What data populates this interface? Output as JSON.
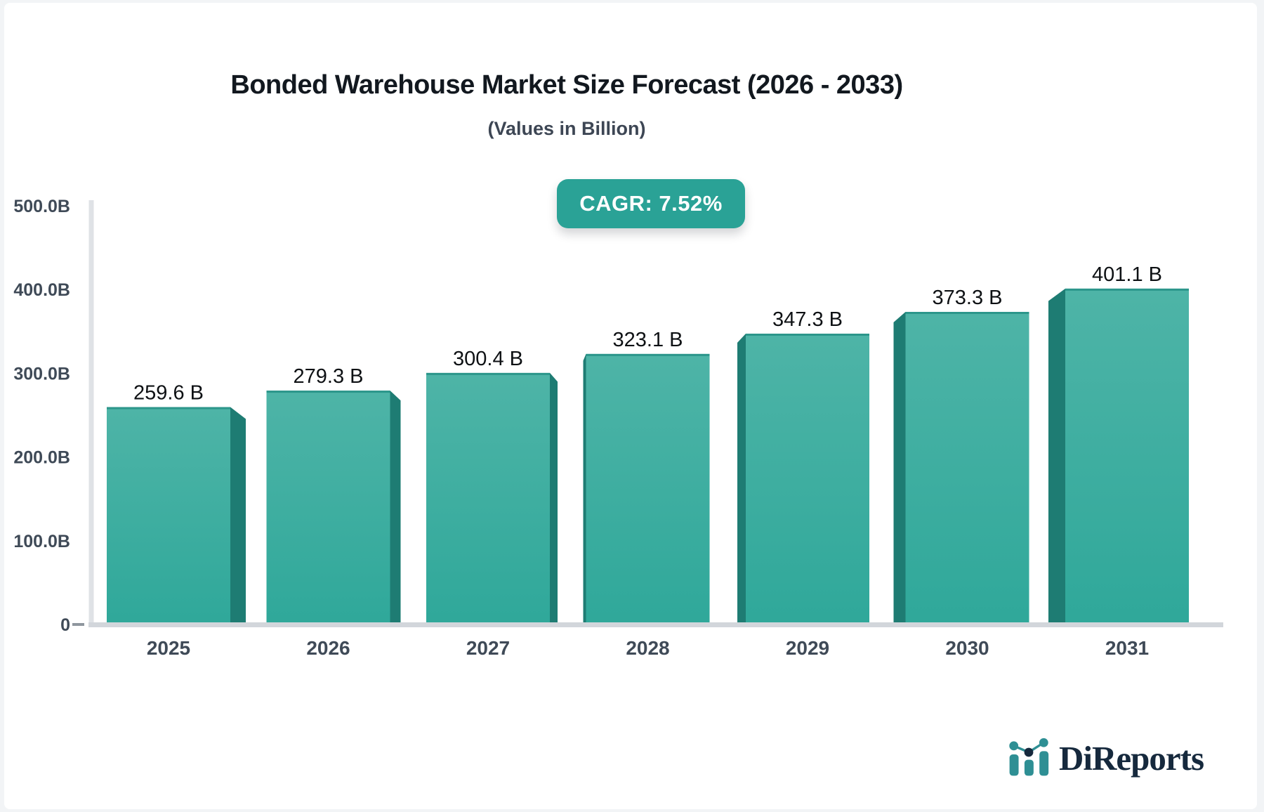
{
  "header": {
    "title": "Bonded Warehouse Market Size Forecast (2026 - 2033)",
    "subtitle": "(Values in Billion)"
  },
  "badge": {
    "label": "CAGR: 7.52%",
    "bg_color": "#2AA296",
    "text_color": "#FFFFFF"
  },
  "chart_data": {
    "type": "bar",
    "title": "Bonded Warehouse Market Size Forecast (2026 - 2033)",
    "subtitle": "(Values in Billion)",
    "unit": "Billion",
    "cagr": "7.52%",
    "categories": [
      "2025",
      "2026",
      "2027",
      "2028",
      "2029",
      "2030",
      "2031"
    ],
    "values": [
      259.6,
      279.3,
      300.4,
      323.1,
      347.3,
      373.3,
      401.1
    ],
    "value_labels": [
      "259.6 B",
      "279.3 B",
      "300.4 B",
      "323.1 B",
      "347.3 B",
      "373.3 B",
      "401.1 B"
    ],
    "ylim": [
      0,
      500
    ],
    "y_ticks": [
      {
        "value": 500,
        "label": "500.0B"
      },
      {
        "value": 400,
        "label": "400.0B"
      },
      {
        "value": 300,
        "label": "300.0B"
      },
      {
        "value": 200,
        "label": "200.0B"
      },
      {
        "value": 100,
        "label": "100.0B"
      },
      {
        "value": 0,
        "label": "0"
      }
    ],
    "grid": false,
    "legend": false,
    "colors": {
      "bar_face_top": "#4EB4A7",
      "bar_face_bottom": "#2FA89A",
      "bar_side": "#1E7C73",
      "bar_top_edge": "#2C968B",
      "axis_line": "#DFE2E6",
      "baseline": "#D2D6DB",
      "zero_tick": "#8F969E",
      "tick_text": "#3F4A57",
      "value_text": "#0E1114"
    }
  },
  "logo": {
    "text": "DiReports",
    "icon": "bar-chart-trend-icon",
    "navy": "#16293D",
    "teal": "#2E8F94"
  }
}
